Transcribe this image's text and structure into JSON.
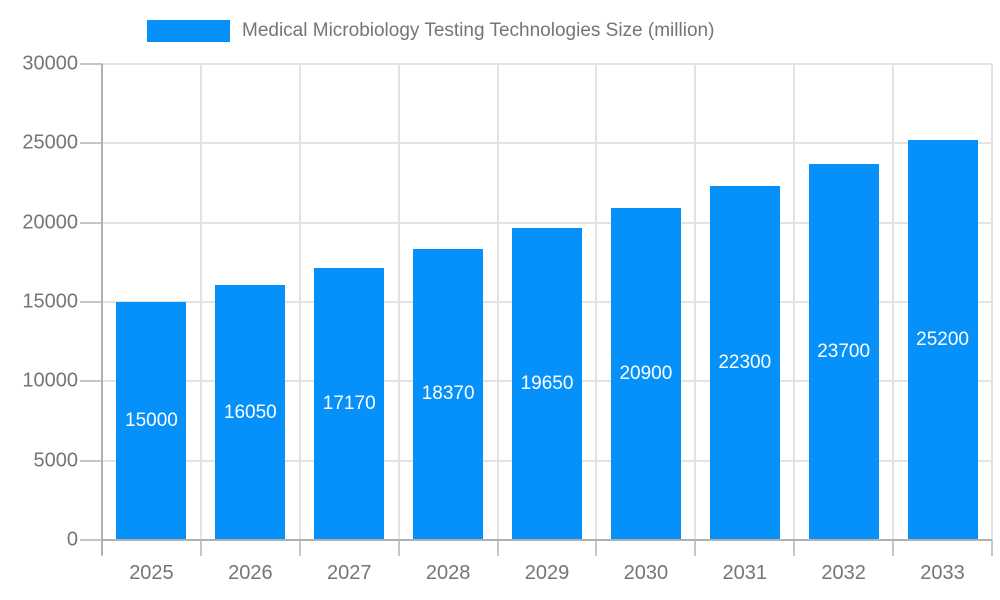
{
  "legend": {
    "label": "Medical Microbiology Testing Technologies Size (million)"
  },
  "chart_data": {
    "type": "bar",
    "title": "Medical Microbiology Testing Technologies Size (million)",
    "categories": [
      "2025",
      "2026",
      "2027",
      "2028",
      "2029",
      "2030",
      "2031",
      "2032",
      "2033"
    ],
    "values": [
      15000,
      16050,
      17170,
      18370,
      19650,
      20900,
      22300,
      23700,
      25200
    ],
    "series_name": "Medical Microbiology Testing Technologies Size (million)",
    "xlabel": "",
    "ylabel": "",
    "ylim": [
      0,
      30000
    ],
    "yticks": [
      0,
      5000,
      10000,
      15000,
      20000,
      25000,
      30000
    ],
    "grid": true,
    "legend_position": "top-center",
    "value_labels": "white, centered at mid-height inside each bar"
  },
  "colors": {
    "bar": "#0691fa",
    "axis": "#b0b0b0",
    "gridline": "#e3e3e3",
    "tick": "#c6c6c6",
    "label_text": "#757575",
    "value_text": "#ffffff",
    "background": "#ffffff"
  }
}
